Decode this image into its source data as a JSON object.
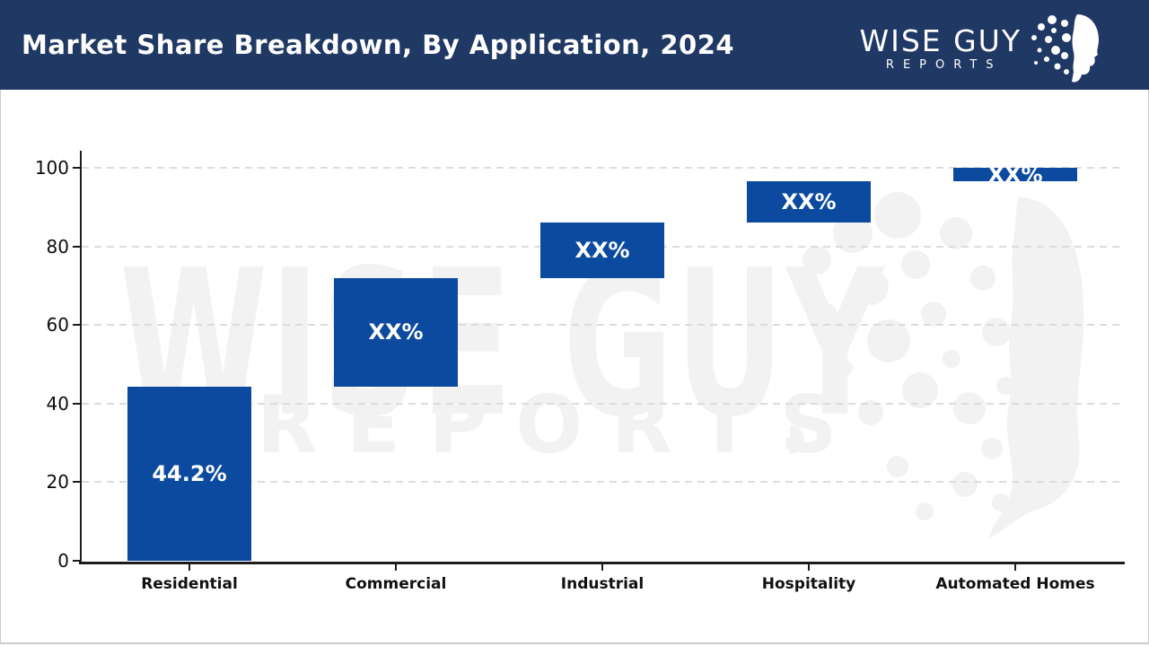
{
  "header": {
    "title": "Market Share Breakdown, By Application, 2024",
    "logo": {
      "line1": "WISE GUY",
      "line2": "REPORTS"
    }
  },
  "watermark": {
    "line1": "WISE GUY",
    "line2": "REPORTS"
  },
  "colors": {
    "header_bg": "#1f3864",
    "bar": "#0b4a9e",
    "grid": "#dcdcdc",
    "axis": "#1c1c1c",
    "bar_label_text": "#ffffff",
    "tick_text": "#0d0d0d",
    "watermark": "#f2f2f2"
  },
  "chart_data": {
    "type": "bar",
    "subtype": "waterfall",
    "title": "Market Share Breakdown, By Application, 2024",
    "categories": [
      "Residential",
      "Commercial",
      "Industrial",
      "Hospitality",
      "Automated Homes"
    ],
    "segments": [
      {
        "category": "Residential",
        "start": 0,
        "end": 44.2,
        "label": "44.2%"
      },
      {
        "category": "Commercial",
        "start": 44.2,
        "end": 72,
        "label": "XX%"
      },
      {
        "category": "Industrial",
        "start": 72,
        "end": 86,
        "label": "XX%"
      },
      {
        "category": "Hospitality",
        "start": 86,
        "end": 96.5,
        "label": "XX%"
      },
      {
        "category": "Automated Homes",
        "start": 96.5,
        "end": 100,
        "label": "XX%"
      }
    ],
    "yticks": [
      0,
      20,
      40,
      60,
      80,
      100
    ],
    "ylim": [
      0,
      105
    ],
    "xlabel": "",
    "ylabel": "",
    "grid": {
      "axis": "y",
      "style": "dashed",
      "on": true
    },
    "legend": null,
    "bar_color": "#0b4a9e"
  }
}
